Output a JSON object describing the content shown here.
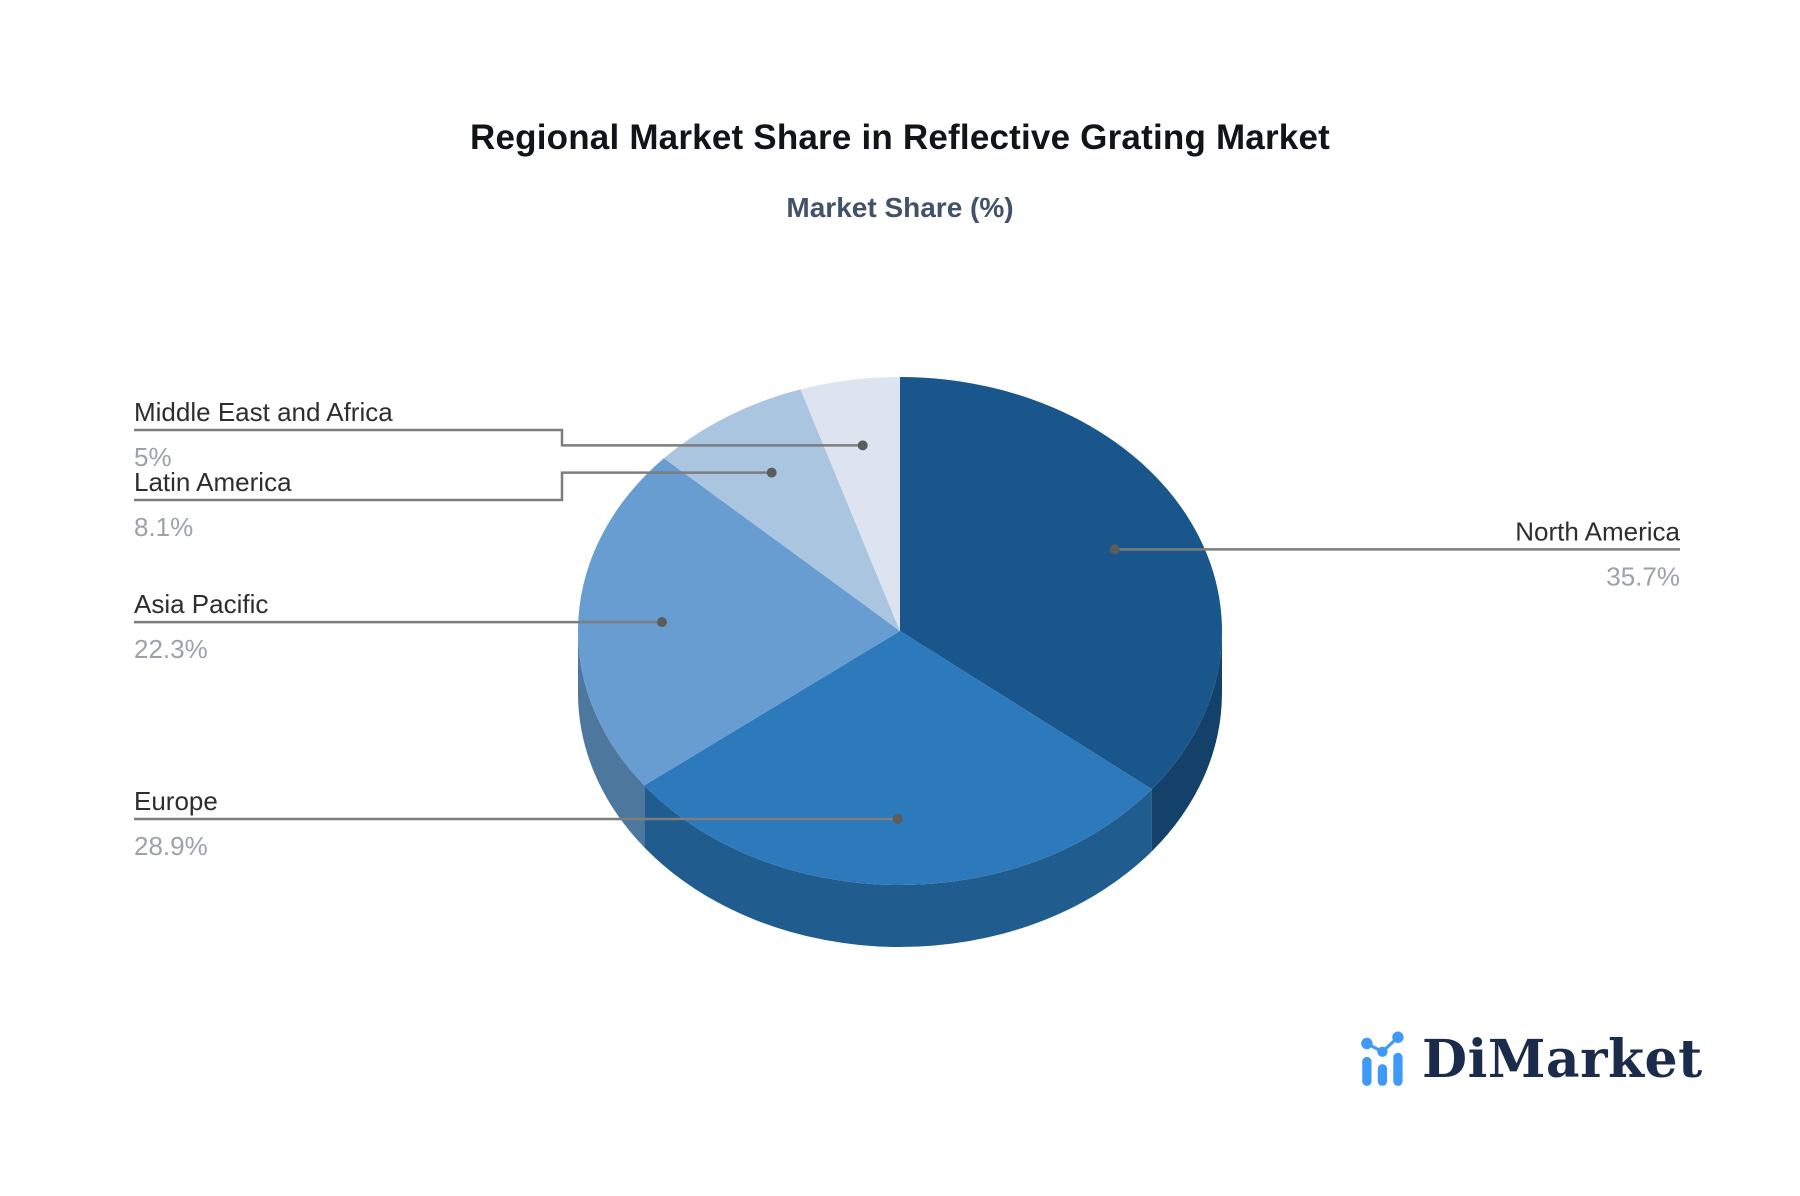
{
  "title": "Regional Market Share in Reflective Grating Market",
  "subtitle": "Market Share (%)",
  "brand": {
    "name": "DiMarket",
    "icon": "bar-chart-logo-icon",
    "text_color": "#1b2b4b",
    "icon_color": "#3f9af5"
  },
  "chart_data": {
    "type": "pie",
    "effect": "3d",
    "start_angle_deg": -90,
    "direction": "clockwise",
    "labels": [
      "North America",
      "Europe",
      "Asia Pacific",
      "Latin America",
      "Middle East and Africa"
    ],
    "values": [
      35.7,
      28.9,
      22.3,
      8.1,
      5
    ],
    "unit": "%",
    "colors": [
      "#19568c",
      "#2c79bc",
      "#679dd0",
      "#a9c5df",
      "#dde4ef"
    ],
    "leader_line_color": "#7d7d7d",
    "leader_dot_color": "#5c5c5c",
    "label_color": "#2e2e2e",
    "value_color": "#9da2a8",
    "legend": "none",
    "background": "#ffffff"
  }
}
